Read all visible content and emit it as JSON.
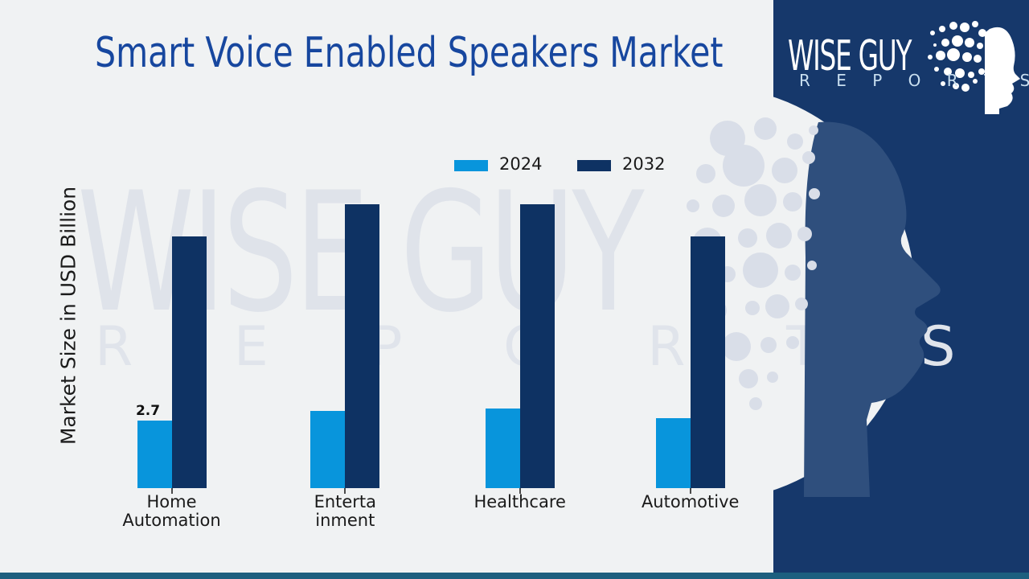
{
  "title": "Smart Voice Enabled Speakers Market",
  "logo": {
    "brand_line1": "WISE GUY",
    "brand_line2": "R E P O R T S"
  },
  "watermark": {
    "line1": "WISE GUY",
    "line2": "R E P O R T S"
  },
  "colors": {
    "title_blue": "#17479f",
    "bar_2024": "#0895dc",
    "bar_2032": "#0e3263",
    "panel_navy": "#16386b",
    "face_navy": "#2f4f7d",
    "footer_teal": "#1d5f7f"
  },
  "chart_data": {
    "type": "bar",
    "title": "Smart Voice Enabled Speakers Market",
    "ylabel": "Market Size in USD Billion",
    "xlabel": "",
    "categories": [
      "Home Automation",
      "Entertainment",
      "Healthcare",
      "Automotive"
    ],
    "category_display_lines": [
      [
        "Home",
        "Automation"
      ],
      [
        "Enterta",
        "inment"
      ],
      [
        "Healthcare"
      ],
      [
        "Automotive"
      ]
    ],
    "series": [
      {
        "name": "2024",
        "color": "#0895dc",
        "values": [
          2.7,
          3.1,
          3.2,
          2.8
        ]
      },
      {
        "name": "2032",
        "color": "#0e3263",
        "values": [
          10.1,
          11.4,
          11.4,
          10.1
        ]
      }
    ],
    "data_labels": [
      {
        "series_index": 0,
        "category_index": 0,
        "text": "2.7"
      }
    ],
    "ylim": [
      0,
      12.5
    ],
    "grid": false,
    "legend_position": "top-center"
  }
}
